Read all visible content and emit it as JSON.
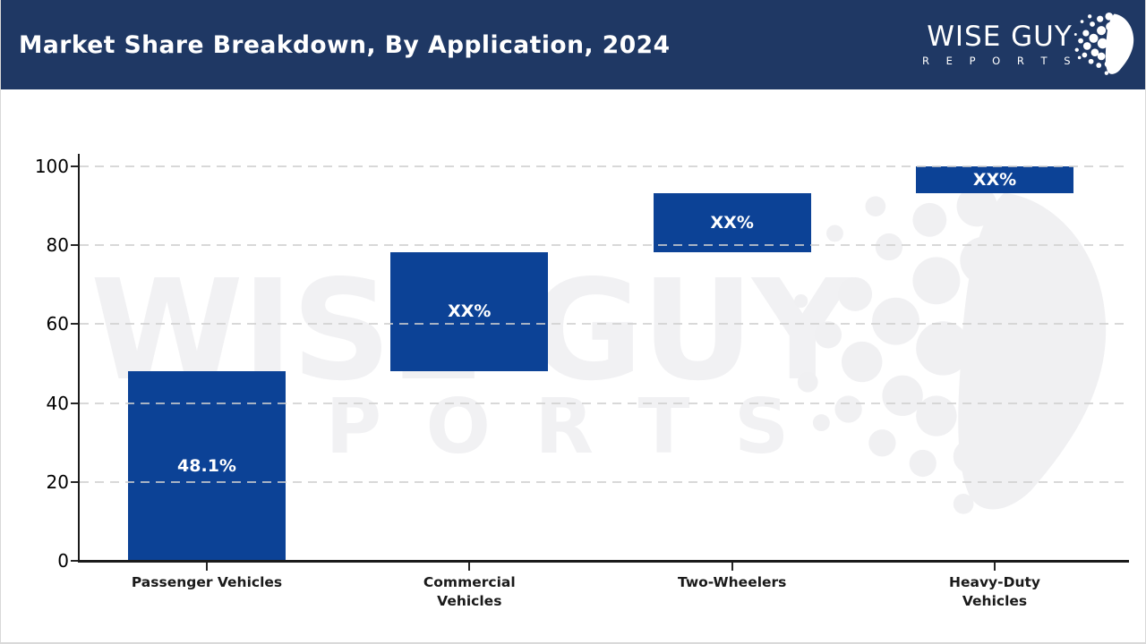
{
  "header": {
    "title": "Market Share Breakdown, By Application, 2024",
    "logo": {
      "wordmark": "WISE GUY",
      "subtext": "R E P O R T S"
    }
  },
  "watermark": {
    "line1": "WISE GUY",
    "line2": "R E P O R T S"
  },
  "chart_data": {
    "type": "bar",
    "subtype": "waterfall",
    "title": "Market Share Breakdown, By Application, 2024",
    "categories": [
      "Passenger Vehicles",
      "Commercial Vehicles",
      "Two-Wheelers",
      "Heavy-Duty Vehicles"
    ],
    "category_label_lines": [
      [
        "Passenger Vehicles"
      ],
      [
        "Commercial",
        "Vehicles"
      ],
      [
        "Two-Wheelers"
      ],
      [
        "Heavy-Duty",
        "Vehicles"
      ]
    ],
    "segments": [
      {
        "category": "Passenger Vehicles",
        "start": 0,
        "end": 48.1,
        "label": "48.1%"
      },
      {
        "category": "Commercial Vehicles",
        "start": 48.1,
        "end": 78.3,
        "label": "XX%"
      },
      {
        "category": "Two-Wheelers",
        "start": 78.3,
        "end": 93.1,
        "label": "XX%"
      },
      {
        "category": "Heavy-Duty Vehicles",
        "start": 93.1,
        "end": 100,
        "label": "XX%"
      }
    ],
    "yticks": [
      0,
      20,
      40,
      60,
      80,
      100
    ],
    "ylim": [
      0,
      105
    ],
    "xlabel": "",
    "ylabel": "",
    "grid": {
      "axis": "y",
      "style": "dashed"
    },
    "legend": null,
    "colors": {
      "bar": "#0c4296",
      "header_bg": "#1f3864",
      "grid": "#cfcfcf",
      "axis": "#1a1a1a",
      "bar_label": "#ffffff",
      "tick_label": "#000000",
      "watermark": "#f0f0f2"
    }
  }
}
